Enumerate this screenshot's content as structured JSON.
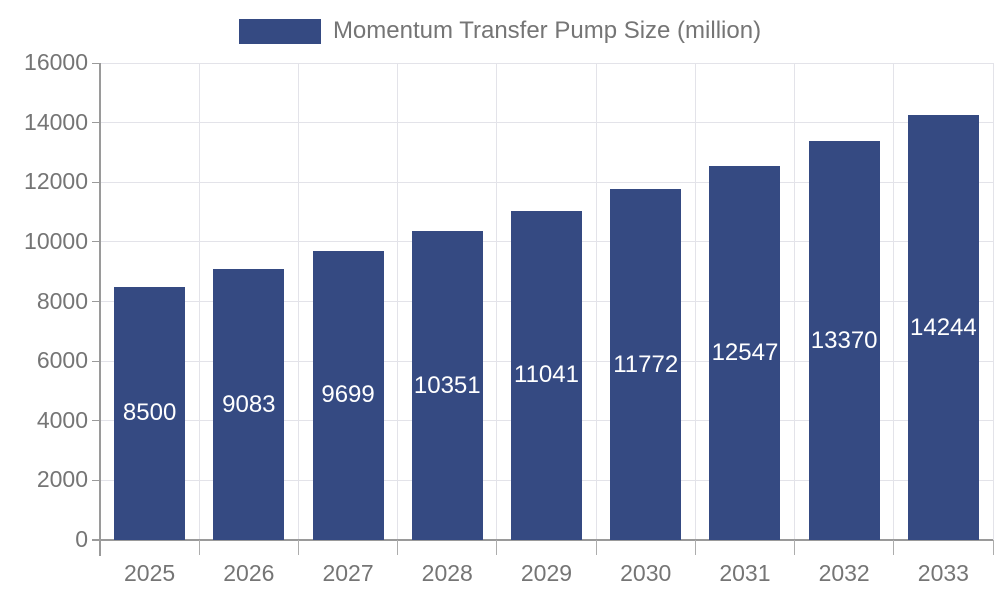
{
  "legend": {
    "label": "Momentum Transfer Pump Size (million)"
  },
  "colors": {
    "bar": "#354a82",
    "axis_line": "#9a9a9a",
    "tick": "#adadad",
    "gridline": "#e3e3e9",
    "axis_text": "#757575",
    "value_label": "#ffffff",
    "background": "#ffffff"
  },
  "chart_data": {
    "type": "bar",
    "title": "",
    "categories": [
      "2025",
      "2026",
      "2027",
      "2028",
      "2029",
      "2030",
      "2031",
      "2032",
      "2033"
    ],
    "series": [
      {
        "name": "Momentum Transfer Pump Size (million)",
        "values": [
          8500,
          9083,
          9699,
          10351,
          11041,
          11772,
          12547,
          13370,
          14244
        ]
      }
    ],
    "value_labels": [
      "8500",
      "9083",
      "9699",
      "10351",
      "11041",
      "11772",
      "12547",
      "13370",
      "14244"
    ],
    "xlabel": "",
    "ylabel": "",
    "ylim": [
      0,
      16000
    ],
    "yticks": [
      0,
      2000,
      4000,
      6000,
      8000,
      10000,
      12000,
      14000,
      16000
    ],
    "grid": true,
    "legend_position": "top"
  }
}
